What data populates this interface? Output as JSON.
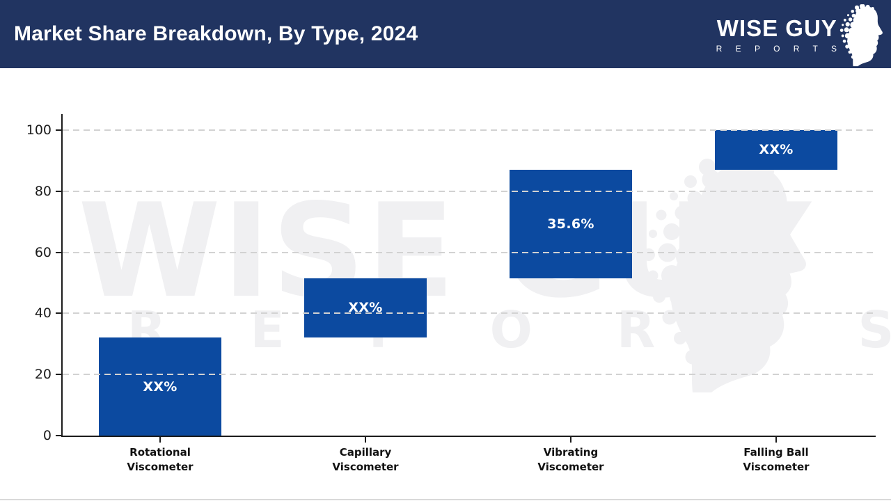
{
  "header": {
    "title": "Market Share Breakdown, By Type, 2024",
    "logo": {
      "primary": "WISE GUY",
      "secondary": "R E P O R T S",
      "head_icon": "dotted-head-profile"
    }
  },
  "watermark": {
    "primary": "WISE GUY",
    "secondary": "R E P O R T S",
    "head_icon": "dotted-head-profile"
  },
  "chart_data": {
    "type": "bar",
    "subtype": "waterfall",
    "title": "Market Share Breakdown, By Type, 2024",
    "xlabel": "",
    "ylabel": "",
    "categories": [
      "Rotational\nViscometer",
      "Capillary\nViscometer",
      "Vibrating\nViscometer",
      "Falling Ball\nViscometer"
    ],
    "segments": [
      {
        "category": "Rotational Viscometer",
        "start": 0,
        "end": 32.1,
        "value": 32.1,
        "label": "XX%"
      },
      {
        "category": "Capillary Viscometer",
        "start": 32.1,
        "end": 51.5,
        "value": 19.4,
        "label": "XX%"
      },
      {
        "category": "Vibrating Viscometer",
        "start": 51.5,
        "end": 87.1,
        "value": 35.6,
        "label": "35.6%"
      },
      {
        "category": "Falling Ball Viscometer",
        "start": 87.1,
        "end": 100,
        "value": 12.9,
        "label": "XX%"
      }
    ],
    "yticks": [
      0,
      20,
      40,
      60,
      80,
      100
    ],
    "ylim": [
      0,
      105
    ],
    "grid": "horizontal-dashed",
    "legend": "none",
    "bar_color": "#0c4aa0",
    "bar_label_color": "#ffffff"
  },
  "colors": {
    "header_bg": "#213461",
    "bar": "#0c4aa0",
    "grid": "#d2d2d2",
    "axis": "#1c1c1c",
    "watermark": "#f0f0f2",
    "footer_line": "#d9d9d9"
  }
}
